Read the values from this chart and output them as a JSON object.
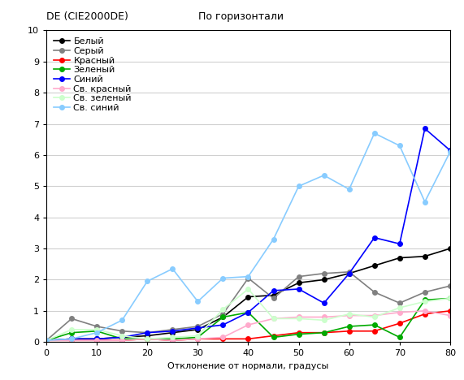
{
  "title_left": "DE (CIE2000DE)",
  "title_right": "По горизонтали",
  "xlabel": "Отклонение от нормали, градусы",
  "ylabel": "",
  "xlim": [
    0,
    80
  ],
  "ylim": [
    0,
    10
  ],
  "xticks": [
    0,
    10,
    20,
    30,
    40,
    50,
    60,
    70,
    80
  ],
  "yticks": [
    0,
    1,
    2,
    3,
    4,
    5,
    6,
    7,
    8,
    9,
    10
  ],
  "series": [
    {
      "label": "Белый",
      "color": "#000000",
      "marker": "o",
      "markersize": 4,
      "linewidth": 1.2,
      "x": [
        0,
        5,
        10,
        15,
        20,
        25,
        30,
        35,
        40,
        45,
        50,
        55,
        60,
        65,
        70,
        75,
        80
      ],
      "y": [
        0.05,
        0.1,
        0.1,
        0.15,
        0.2,
        0.3,
        0.4,
        0.8,
        1.45,
        1.5,
        1.9,
        2.0,
        2.2,
        2.45,
        2.7,
        2.75,
        3.0
      ]
    },
    {
      "label": "Серый",
      "color": "#808080",
      "marker": "o",
      "markersize": 4,
      "linewidth": 1.2,
      "x": [
        0,
        5,
        10,
        15,
        20,
        25,
        30,
        35,
        40,
        45,
        50,
        55,
        60,
        65,
        70,
        75,
        80
      ],
      "y": [
        0.05,
        0.75,
        0.5,
        0.35,
        0.3,
        0.4,
        0.5,
        0.9,
        2.05,
        1.4,
        2.1,
        2.2,
        2.25,
        1.6,
        1.25,
        1.6,
        1.8
      ]
    },
    {
      "label": "Красный",
      "color": "#ff0000",
      "marker": "o",
      "markersize": 4,
      "linewidth": 1.2,
      "x": [
        0,
        5,
        10,
        15,
        20,
        25,
        30,
        35,
        40,
        45,
        50,
        55,
        60,
        65,
        70,
        75,
        80
      ],
      "y": [
        0.05,
        0.05,
        0.05,
        0.05,
        0.1,
        0.05,
        0.1,
        0.1,
        0.1,
        0.2,
        0.3,
        0.3,
        0.35,
        0.35,
        0.6,
        0.9,
        1.0
      ]
    },
    {
      "label": "Зеленый",
      "color": "#00aa00",
      "marker": "o",
      "markersize": 4,
      "linewidth": 1.2,
      "x": [
        0,
        5,
        10,
        15,
        20,
        25,
        30,
        35,
        40,
        45,
        50,
        55,
        60,
        65,
        70,
        75,
        80
      ],
      "y": [
        0.05,
        0.3,
        0.35,
        0.1,
        0.1,
        0.1,
        0.15,
        0.8,
        0.95,
        0.15,
        0.25,
        0.3,
        0.5,
        0.55,
        0.15,
        1.35,
        1.4
      ]
    },
    {
      "label": "Синий",
      "color": "#0000ff",
      "marker": "o",
      "markersize": 4,
      "linewidth": 1.2,
      "x": [
        0,
        5,
        10,
        15,
        20,
        25,
        30,
        35,
        40,
        45,
        50,
        55,
        60,
        65,
        70,
        75,
        80
      ],
      "y": [
        0.05,
        0.1,
        0.1,
        0.15,
        0.3,
        0.35,
        0.45,
        0.55,
        0.95,
        1.65,
        1.7,
        1.25,
        2.2,
        3.35,
        3.15,
        6.85,
        6.15
      ]
    },
    {
      "label": "Св. красный",
      "color": "#ffaacc",
      "marker": "o",
      "markersize": 4,
      "linewidth": 1.2,
      "x": [
        0,
        5,
        10,
        15,
        20,
        25,
        30,
        35,
        40,
        45,
        50,
        55,
        60,
        65,
        70,
        75,
        80
      ],
      "y": [
        0.05,
        0.05,
        0.05,
        0.05,
        0.1,
        0.05,
        0.1,
        0.15,
        0.55,
        0.75,
        0.8,
        0.8,
        0.85,
        0.85,
        0.95,
        1.0,
        0.85
      ]
    },
    {
      "label": "Св. зеленый",
      "color": "#ccffcc",
      "marker": "o",
      "markersize": 4,
      "linewidth": 1.2,
      "x": [
        0,
        5,
        10,
        15,
        20,
        25,
        30,
        35,
        40,
        45,
        50,
        55,
        60,
        65,
        70,
        75,
        80
      ],
      "y": [
        0.05,
        0.4,
        0.4,
        0.2,
        0.1,
        0.15,
        0.2,
        1.05,
        1.7,
        0.75,
        0.75,
        0.7,
        0.9,
        0.8,
        1.1,
        1.3,
        1.4
      ]
    },
    {
      "label": "Св. синий",
      "color": "#88ccff",
      "marker": "o",
      "markersize": 4,
      "linewidth": 1.2,
      "x": [
        0,
        5,
        10,
        15,
        20,
        25,
        30,
        35,
        40,
        45,
        50,
        55,
        60,
        65,
        70,
        75,
        80
      ],
      "y": [
        0.05,
        0.1,
        0.3,
        0.7,
        1.95,
        2.35,
        1.3,
        2.05,
        2.1,
        3.3,
        5.0,
        5.35,
        4.9,
        6.7,
        6.3,
        4.5,
        6.1
      ]
    }
  ],
  "background_color": "#ffffff",
  "plot_bg_color": "#ffffff",
  "grid_color": "#d0d0d0",
  "title_fontsize": 9,
  "label_fontsize": 8,
  "tick_fontsize": 8,
  "legend_fontsize": 8
}
